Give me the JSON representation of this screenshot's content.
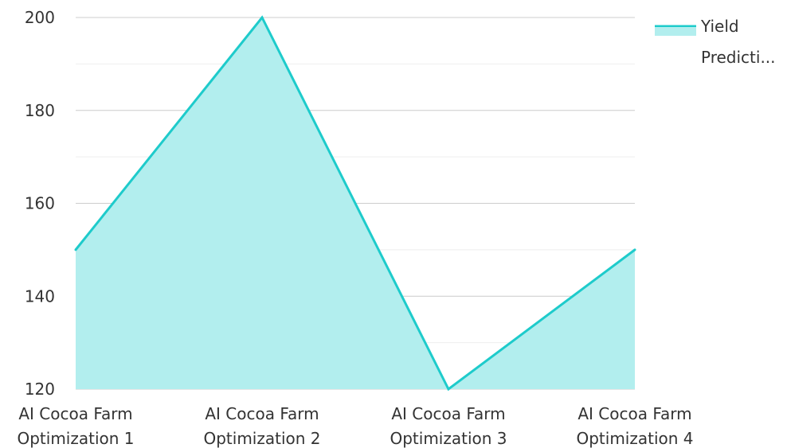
{
  "chart_data": {
    "type": "area",
    "categories": [
      [
        "AI Cocoa Farm",
        "Optimization 1"
      ],
      [
        "AI Cocoa Farm",
        "Optimization 2"
      ],
      [
        "AI Cocoa Farm",
        "Optimization 3"
      ],
      [
        "AI Cocoa Farm",
        "Optimization 4"
      ]
    ],
    "series": [
      {
        "name": "Yield Predicti...",
        "values": [
          150,
          200,
          120,
          150
        ],
        "color": "#1ecbcb",
        "fill_color": "#b2eeee"
      }
    ],
    "ylim": [
      120,
      200
    ],
    "y_ticks": [
      120,
      140,
      160,
      180,
      200
    ],
    "y_minor_ticks": [
      130,
      150,
      170,
      190
    ],
    "grid": true,
    "legend": {
      "position": "top-right",
      "lines": [
        "Yield",
        "Predicti..."
      ]
    },
    "colors": {
      "major_grid": "#cccccc",
      "minor_grid": "#eeeeee",
      "text": "#333333"
    }
  }
}
